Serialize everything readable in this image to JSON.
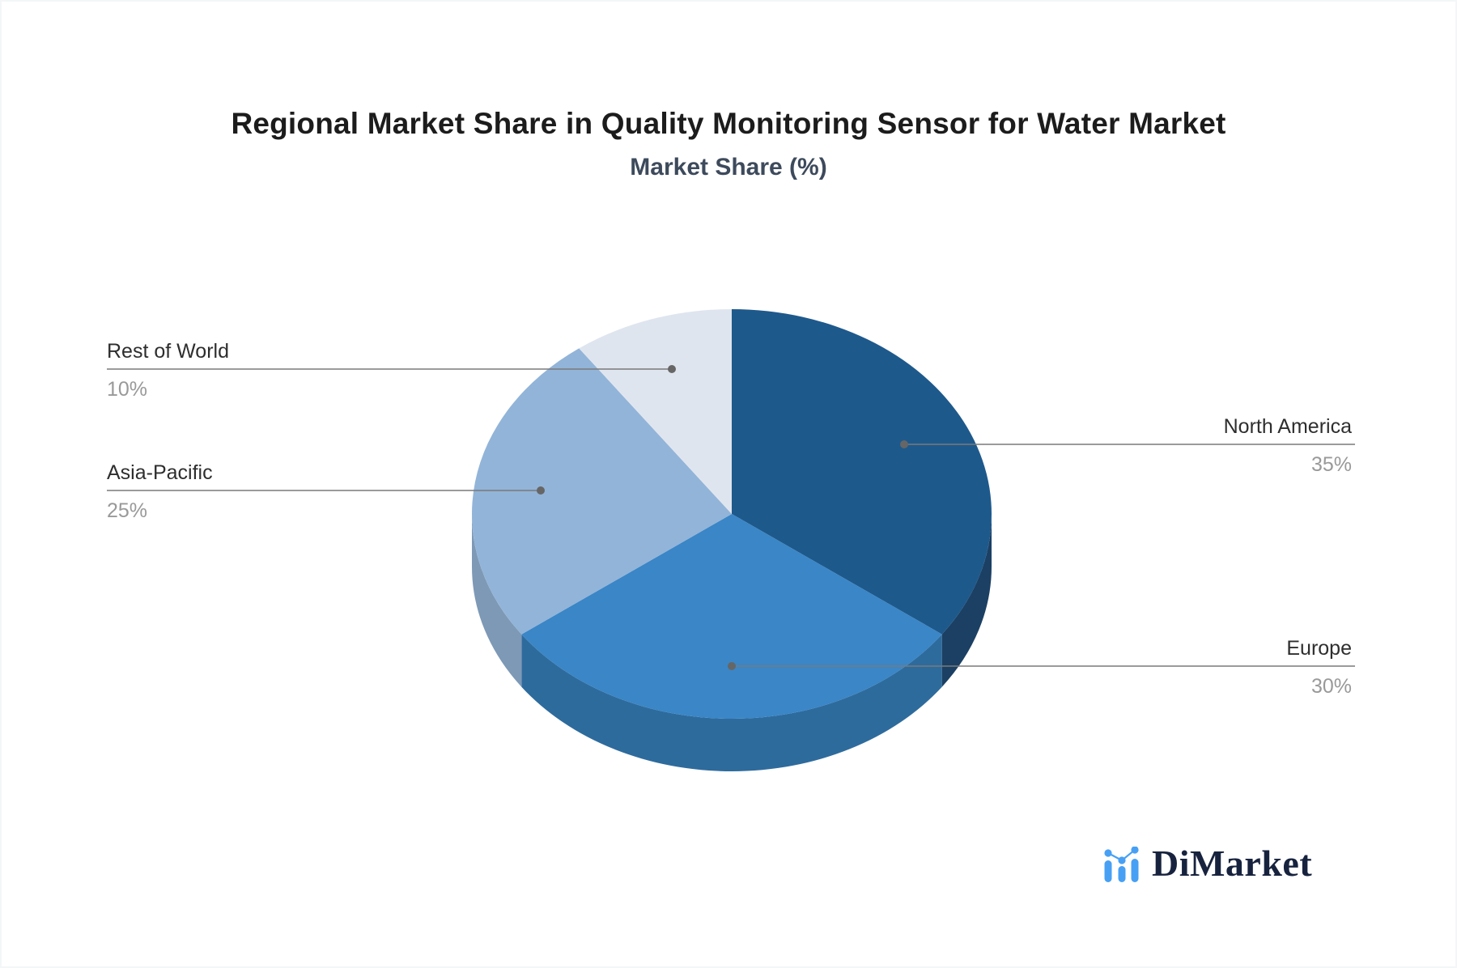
{
  "title": "Regional Market Share in Quality Monitoring Sensor for Water Market",
  "subtitle": "Market Share (%)",
  "chart_data": {
    "type": "pie",
    "style_3d": true,
    "start_angle_deg": 0,
    "direction": "clockwise",
    "title": "Regional Market Share in Quality Monitoring Sensor for Water Market",
    "subtitle": "Market Share (%)",
    "unit": "%",
    "legend_position": "none",
    "labels_position": "callout-lines",
    "slices": [
      {
        "label": "North America",
        "value": 35,
        "pct_text": "35%",
        "color": "#1e598c",
        "side_color": "#1b4063"
      },
      {
        "label": "Europe",
        "value": 30,
        "pct_text": "30%",
        "color": "#3a86c7",
        "side_color": "#2e6b9d"
      },
      {
        "label": "Asia-Pacific",
        "value": 25,
        "pct_text": "25%",
        "color": "#92b4d8",
        "side_color": "#7d99b6"
      },
      {
        "label": "Rest of World",
        "value": 10,
        "pct_text": "10%",
        "color": "#dfe5ef",
        "side_color": "#c3cede"
      }
    ]
  },
  "callout_style": {
    "line_color": "#7a7a7a",
    "dot_color": "#666666",
    "label_color": "#2e2e2e",
    "pct_color": "#999999"
  },
  "logo": {
    "text": "DiMarket",
    "icon": "bar-chart-with-dots-icon",
    "icon_color": "#47a0f4",
    "text_color": "#17233e"
  }
}
